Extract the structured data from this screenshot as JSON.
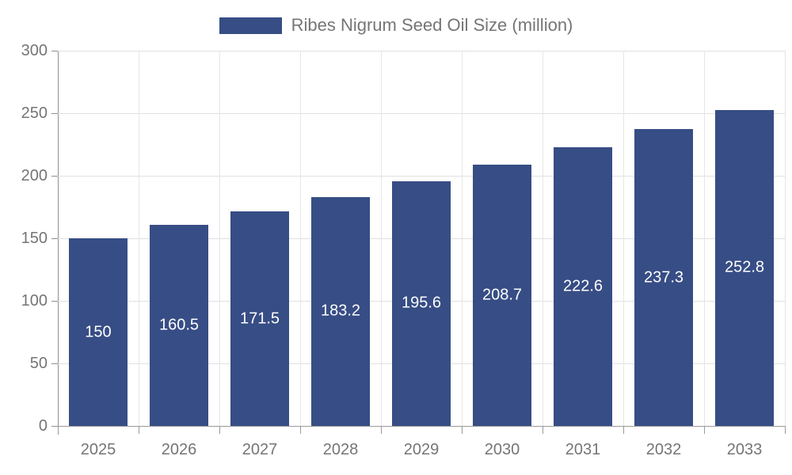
{
  "legend": {
    "label": "Ribes Nigrum Seed Oil Size (million)",
    "swatch_color": "#374D85"
  },
  "chart_data": {
    "type": "bar",
    "title": "Ribes Nigrum Seed Oil Size (million)",
    "categories": [
      "2025",
      "2026",
      "2027",
      "2028",
      "2029",
      "2030",
      "2031",
      "2032",
      "2033"
    ],
    "values": [
      150,
      160.5,
      171.5,
      183.2,
      195.6,
      208.7,
      222.6,
      237.3,
      252.8
    ],
    "value_labels": [
      "150",
      "160.5",
      "171.5",
      "183.2",
      "195.6",
      "208.7",
      "222.6",
      "237.3",
      "252.8"
    ],
    "xlabel": "",
    "ylabel": "",
    "ylim": [
      0,
      300
    ],
    "ytick_step": 50,
    "yticks": [
      "0",
      "50",
      "100",
      "150",
      "200",
      "250",
      "300"
    ],
    "grid": true,
    "legend_position": "top",
    "bar_color": "#374D85",
    "bar_label_color": "#ffffff",
    "axis_text_color": "#757575",
    "grid_color": "#e0e0e0",
    "axis_line_color": "#8f8f8f"
  }
}
